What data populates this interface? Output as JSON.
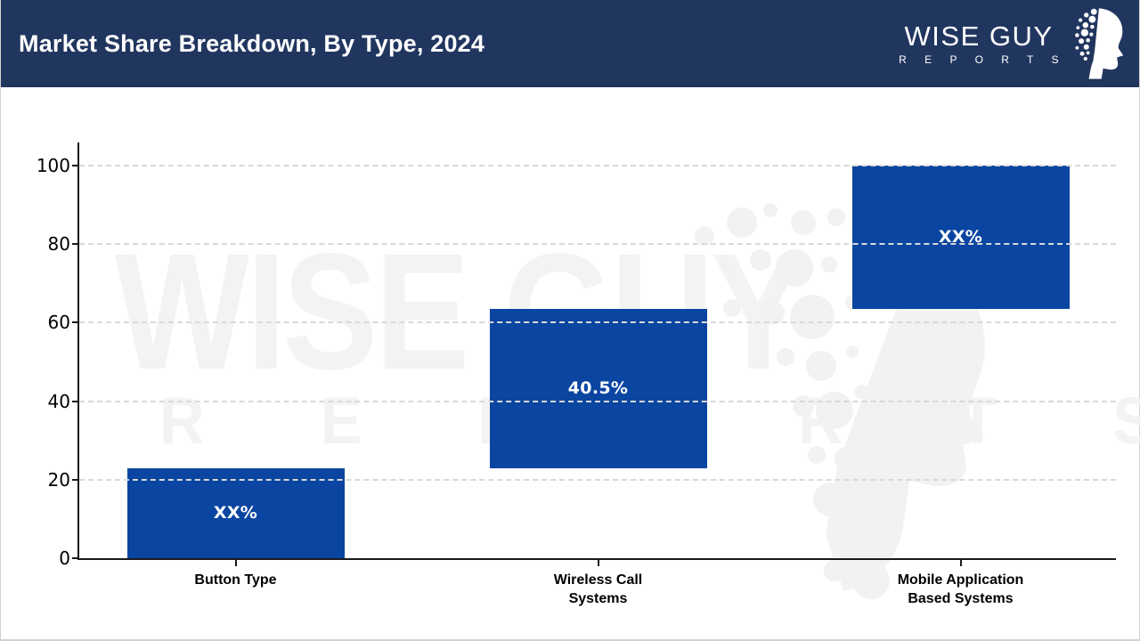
{
  "header": {
    "title": "Market Share Breakdown, By Type, 2024",
    "logo": {
      "line1": "WISE GUY",
      "line2": "R E P O R T S"
    }
  },
  "watermark": {
    "line1": "WISE GUY",
    "line2": "R E P O R T S"
  },
  "chart_data": {
    "type": "bar",
    "subtype": "waterfall",
    "title": "Market Share Breakdown, By Type, 2024",
    "categories": [
      [
        "Button Type"
      ],
      [
        "Wireless Call",
        "Systems"
      ],
      [
        "Mobile Application",
        "Based Systems"
      ]
    ],
    "segments": [
      {
        "label": "XX%",
        "start": 0,
        "end": 23
      },
      {
        "label": "40.5%",
        "start": 23,
        "end": 63.5
      },
      {
        "label": "XX%",
        "start": 63.5,
        "end": 100
      }
    ],
    "yticks": [
      0,
      20,
      40,
      60,
      80,
      100
    ],
    "ylim": [
      0,
      105
    ],
    "xlabel": "",
    "ylabel": "",
    "grid": "dashed-horizontal",
    "legend": "none",
    "bar_color": "#0a45a1",
    "label_color": "#ffffff",
    "header_color": "#21365f",
    "grid_color": "#d9d9d9"
  }
}
